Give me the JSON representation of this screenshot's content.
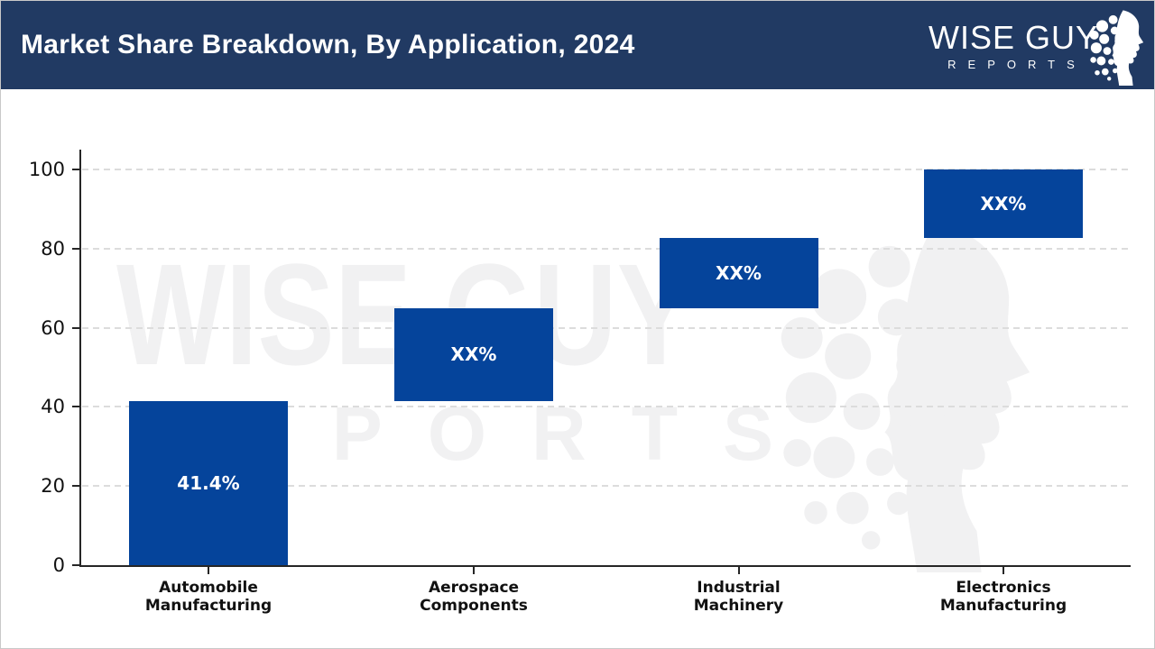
{
  "header": {
    "title": "Market Share Breakdown, By Application, 2024",
    "logo": {
      "line1": "WISE GUY",
      "line2": "REPORTS"
    }
  },
  "watermark": {
    "line1": "WISE GUY",
    "line2": "REPORTS"
  },
  "colors": {
    "header_background": "#213a63",
    "bar_fill": "#05449b",
    "bar_label_text": "#ffffff",
    "axis": "#262626",
    "gridline": "#dcdcdc",
    "watermark": "#f1f1f2"
  },
  "chart_data": {
    "type": "bar",
    "subtype": "waterfall",
    "title": "Market Share Breakdown, By Application, 2024",
    "xlabel": "",
    "ylabel": "",
    "ylim": [
      0,
      105
    ],
    "yticks": [
      0,
      20,
      40,
      60,
      80,
      100
    ],
    "grid": "horizontal-dashed",
    "legend": "none",
    "categories": [
      "Automobile Manufacturing",
      "Aerospace Components",
      "Industrial Machinery",
      "Electronics Manufacturing"
    ],
    "series": [
      {
        "name": "Market Share %",
        "segments": [
          {
            "name": "Automobile Manufacturing",
            "start": 0,
            "end": 41.4,
            "label": "41.4%"
          },
          {
            "name": "Aerospace Components",
            "start": 41.4,
            "end": 65,
            "label": "XX%"
          },
          {
            "name": "Industrial Machinery",
            "start": 65,
            "end": 82.8,
            "label": "XX%"
          },
          {
            "name": "Electronics Manufacturing",
            "start": 82.8,
            "end": 100,
            "label": "XX%"
          }
        ]
      }
    ]
  }
}
